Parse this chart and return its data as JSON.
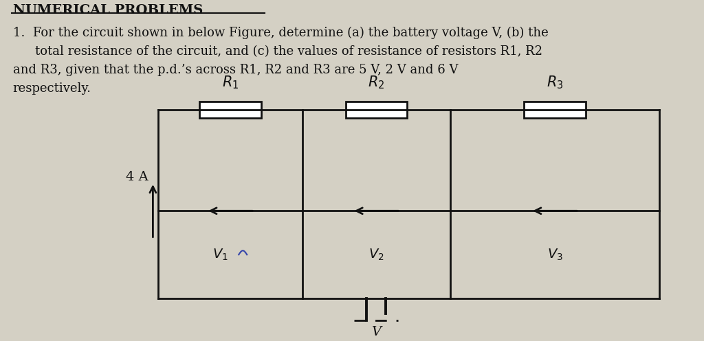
{
  "title": "NUMERICAL PROBLEMS",
  "line1": "1.  For the circuit shown in below Figure, determine (a) the battery voltage V, (b) the",
  "line2": "     total resistance of the circuit, and (c) the values of resistance of resistors R1, R2",
  "line3": "and R3, given that the p.d.’s across R1, R2 and R3 are 5 V, 2 V and 6 V",
  "line4": "respectively.",
  "bg_color": "#d4d0c4",
  "text_color": "#111111",
  "circuit_color": "#111111",
  "font_size_text": 13.0,
  "font_size_labels": 14,
  "current_label": "4 A",
  "battery_label": "V"
}
